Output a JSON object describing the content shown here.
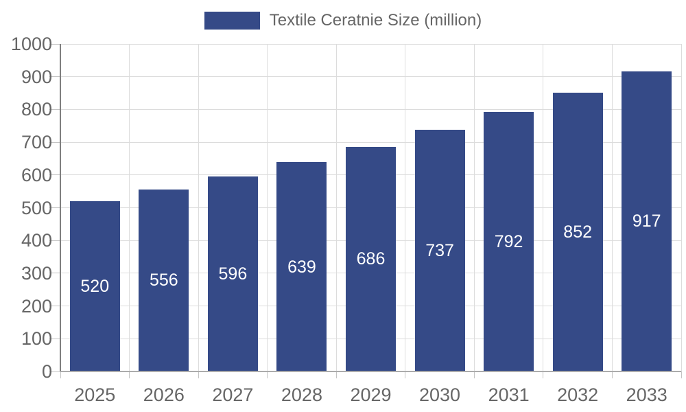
{
  "chart_data": {
    "type": "bar",
    "title": "Textile Ceratnie Size (million)",
    "categories": [
      "2025",
      "2026",
      "2027",
      "2028",
      "2029",
      "2030",
      "2031",
      "2032",
      "2033"
    ],
    "values": [
      520,
      556,
      596,
      639,
      686,
      737,
      792,
      852,
      917
    ],
    "xlabel": "",
    "ylabel": "",
    "ylim": [
      0,
      1000
    ],
    "ytick_step": 100,
    "ytick_labels": [
      "0",
      "100",
      "200",
      "300",
      "400",
      "500",
      "600",
      "700",
      "800",
      "900",
      "1000"
    ],
    "grid": true,
    "legend_position": "top-center",
    "colors": {
      "bar": "#354a87",
      "value_label": "#ffffff",
      "axis_text": "#666666",
      "gridline": "#dcdcdc",
      "tick": "#c4c4c4",
      "y_axis_line": "#7f7f7f",
      "x_axis_line": "#ababab",
      "background": "#ffffff"
    }
  }
}
